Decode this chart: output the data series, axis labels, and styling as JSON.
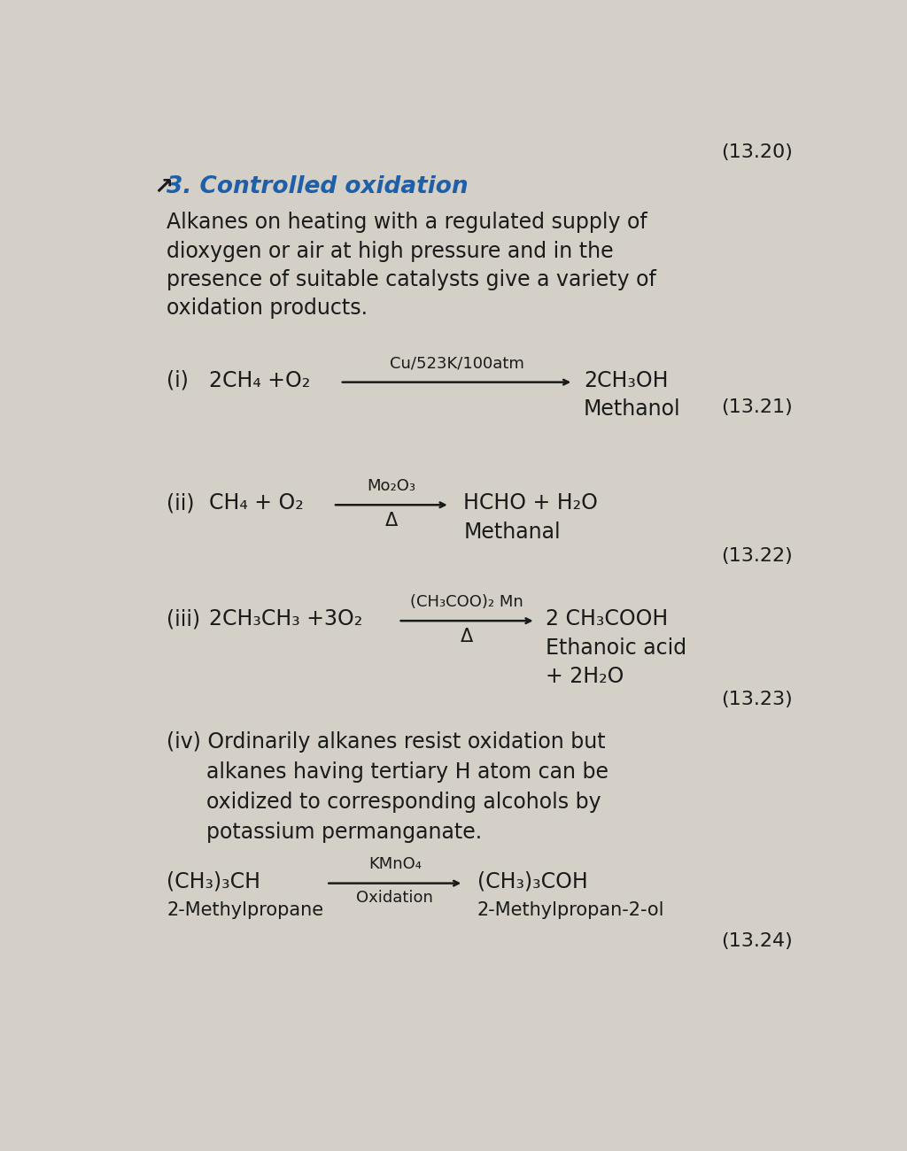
{
  "bg_color": "#d4d0c8",
  "text_color": "#1a1a1a",
  "title_color": "#1e5faa",
  "page_ref": "(13.20)",
  "title": "3. Controlled oxidation",
  "intro_line1": "Alkanes on heating with a regulated supply of",
  "intro_line2": "dioxygen or air at high pressure and in the",
  "intro_line3": "presence of suitable catalysts give a variety of",
  "intro_line4": "oxidation products.",
  "eq1_label": "(i)",
  "eq1_lhs": "2CH₄ +O₂",
  "eq1_arrow_label": "Cu/523K/100atm",
  "eq1_rhs1": "2CH₃OH",
  "eq1_rhs2": "Methanol",
  "eq1_num": "(13.21)",
  "eq2_label": "(ii)",
  "eq2_lhs": "CH₄ + O₂",
  "eq2_arrow_top": "Mo₂O₃",
  "eq2_arrow_bot": "Δ",
  "eq2_rhs": "HCHO + H₂O",
  "eq2_rhs2": "Methanal",
  "eq2_num": "(13.22)",
  "eq3_label": "(iii)",
  "eq3_lhs": "2CH₃CH₃ +3O₂",
  "eq3_arrow_top": "(CH₃COO)₂ Mn",
  "eq3_arrow_bot": "Δ",
  "eq3_rhs1": "2 CH₃COOH",
  "eq3_rhs2": "Ethanoic acid",
  "eq3_rhs3": "+ 2H₂O",
  "eq3_num": "(13.23)",
  "para4_line1": "(iv) Ordinarily alkanes resist oxidation but",
  "para4_line2": "      alkanes having tertiary H atom can be",
  "para4_line3": "      oxidized to corresponding alcohols by",
  "para4_line4": "      potassium permanganate.",
  "eq4_lhs1": "(CH₃)₃CH",
  "eq4_arrow_top": "KMnO₄",
  "eq4_arrow_bot": "Oxidation",
  "eq4_rhs": "(CH₃)₃COH",
  "eq4_lhs_label": "2-Methylpropane",
  "eq4_rhs_label": "2-Methylpropan-2-ol",
  "eq4_num": "(13.24)",
  "fs_title": 19,
  "fs_body": 17,
  "fs_eq": 17,
  "fs_arrow": 13,
  "fs_num": 16
}
